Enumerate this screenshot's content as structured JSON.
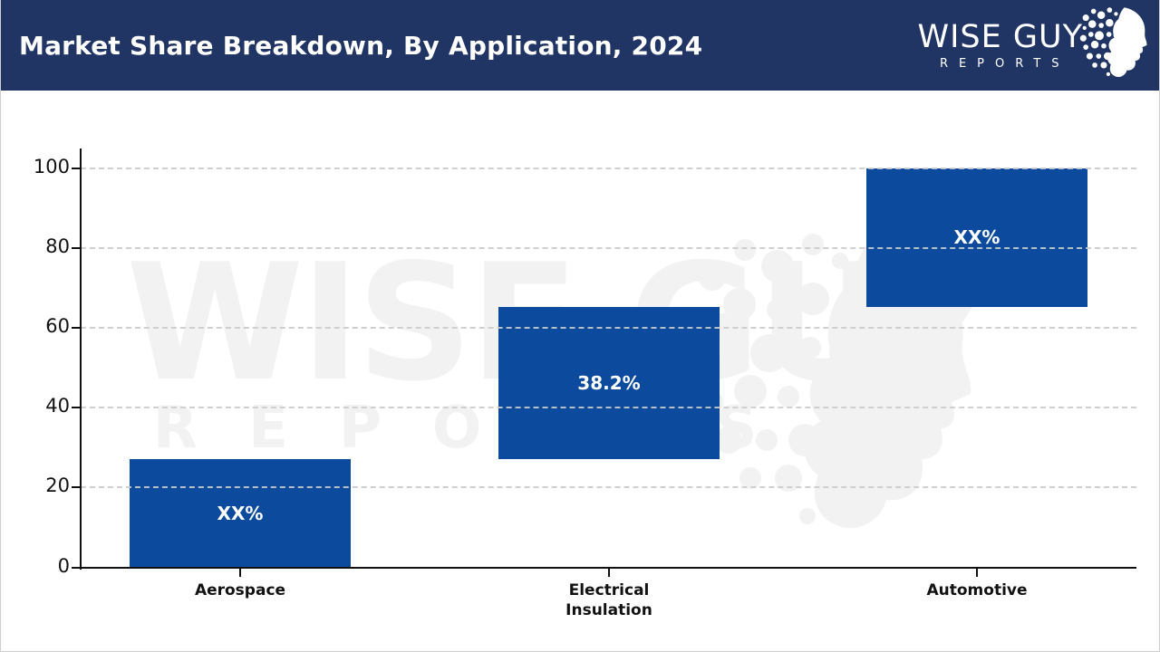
{
  "header": {
    "title": "Market Share Breakdown, By Application, 2024",
    "logo": {
      "line1": "WISE GUY",
      "line2": "REPORTS"
    }
  },
  "watermark": {
    "line1": "WISE GUY",
    "line2": "REPORTS"
  },
  "colors": {
    "header_bg": "#213564",
    "bar": "#0c4a9d",
    "bar_label": "#ffffff",
    "grid": "#cbcbcb",
    "axis": "#111111",
    "watermark": "#f2f2f2",
    "frame_border": "#cfcfcf"
  },
  "chart_data": {
    "type": "bar",
    "subtype": "floating-waterfall",
    "title": "Market Share Breakdown, By Application, 2024",
    "categories": [
      "Aerospace",
      "Electrical Insulation",
      "Automotive"
    ],
    "bars": [
      {
        "category": "Aerospace",
        "start": 0,
        "end": 27,
        "value_label": "XX%"
      },
      {
        "category": "Electrical Insulation",
        "start": 27,
        "end": 65.2,
        "value_label": "38.2%"
      },
      {
        "category": "Automotive",
        "start": 65.2,
        "end": 100,
        "value_label": "XX%"
      }
    ],
    "xlabel": "",
    "ylabel": "",
    "yticks": [
      0,
      20,
      40,
      60,
      80,
      100
    ],
    "ylim": [
      0,
      105
    ],
    "grid": "horizontal-dashed",
    "legend": "none"
  }
}
